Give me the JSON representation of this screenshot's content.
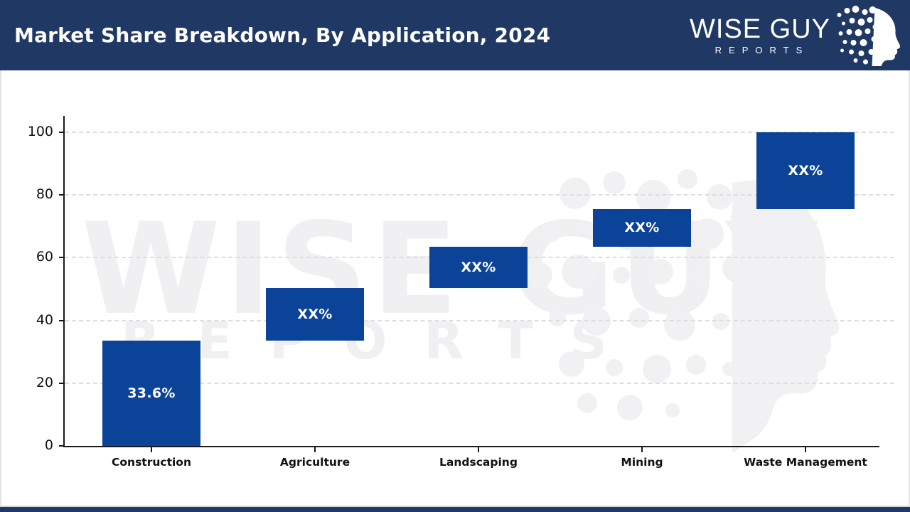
{
  "header": {
    "title": "Market Share Breakdown, By Application, 2024",
    "logo": {
      "line1": "WISE GUY",
      "line2": "REPORTS"
    },
    "bg_color": "#1f3864"
  },
  "watermark": {
    "line1": "WISE GUY",
    "line2": "REPORTS"
  },
  "chart_data": {
    "type": "bar",
    "subtype": "waterfall",
    "title": "Market Share Breakdown, By Application, 2024",
    "categories": [
      "Construction",
      "Agriculture",
      "Landscaping",
      "Mining",
      "Waste Management"
    ],
    "segments": [
      {
        "category": "Construction",
        "start": 0,
        "end": 33.6,
        "label": "33.6%"
      },
      {
        "category": "Agriculture",
        "start": 33.6,
        "end": 50.4,
        "label": "XX%"
      },
      {
        "category": "Landscaping",
        "start": 50.4,
        "end": 63.6,
        "label": "XX%"
      },
      {
        "category": "Mining",
        "start": 63.6,
        "end": 75.5,
        "label": "XX%"
      },
      {
        "category": "Waste Management",
        "start": 75.6,
        "end": 100,
        "label": "XX%"
      }
    ],
    "bar_labels": [
      "33.6%",
      "XX%",
      "XX%",
      "XX%",
      "XX%"
    ],
    "yticks": [
      0,
      20,
      40,
      60,
      80,
      100
    ],
    "ylim": [
      0,
      105
    ],
    "xlabel": "",
    "ylabel": "",
    "grid": "horizontal-dashed",
    "legend": "none",
    "bar_color": "#0a4397",
    "label_color": "#ffffff"
  }
}
